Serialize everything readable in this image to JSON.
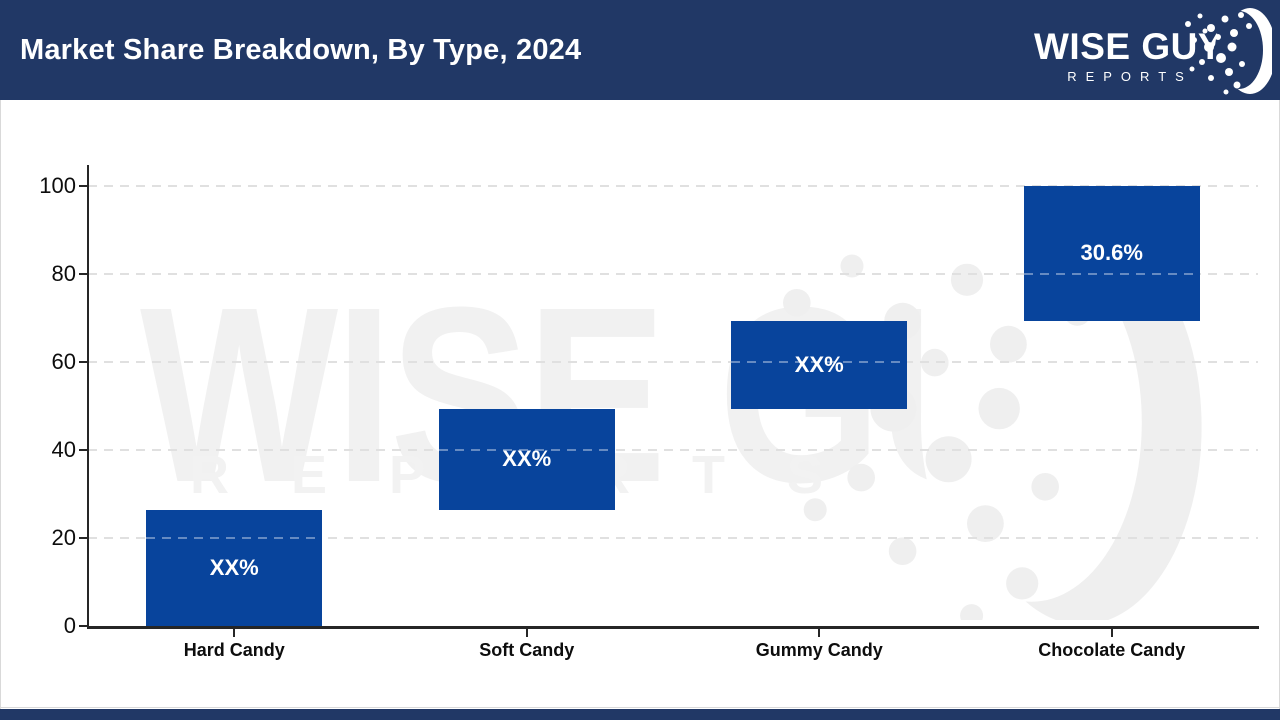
{
  "header": {
    "title": "Market Share Breakdown, By Type, 2024",
    "bg_color": "#213866",
    "logo": {
      "name": "WISE GUY",
      "tagline": "REPORTS",
      "head_icon": "dotted-head-profile-icon"
    }
  },
  "watermark": {
    "name": "WISE GUY",
    "tagline": "REPORTS",
    "head_icon": "dotted-head-profile-icon"
  },
  "footer": {
    "bg_color": "#213866"
  },
  "chart_data": {
    "type": "bar",
    "subtype": "floating-waterfall",
    "title": "Market Share Breakdown, By Type, 2024",
    "categories": [
      "Hard Candy",
      "Soft Candy",
      "Gummy Candy",
      "Chocolate Candy"
    ],
    "series": [
      {
        "name": "Market share (%)",
        "ranges": [
          [
            0,
            26.3
          ],
          [
            26.3,
            49.4
          ],
          [
            49.4,
            69.4
          ],
          [
            69.4,
            100
          ]
        ],
        "labels": [
          "XX%",
          "XX%",
          "XX%",
          "30.6%"
        ]
      }
    ],
    "xlabel": "",
    "ylabel": "",
    "ylim": [
      0,
      100
    ],
    "yticks": [
      0,
      20,
      40,
      60,
      80,
      100
    ],
    "grid": {
      "horizontal": true,
      "style": "dashed",
      "color": "#e0e0e0"
    },
    "legend": "none",
    "bar_color": "#08449c",
    "bar_label_color": "#ffffff",
    "axis_color": "#262626"
  }
}
